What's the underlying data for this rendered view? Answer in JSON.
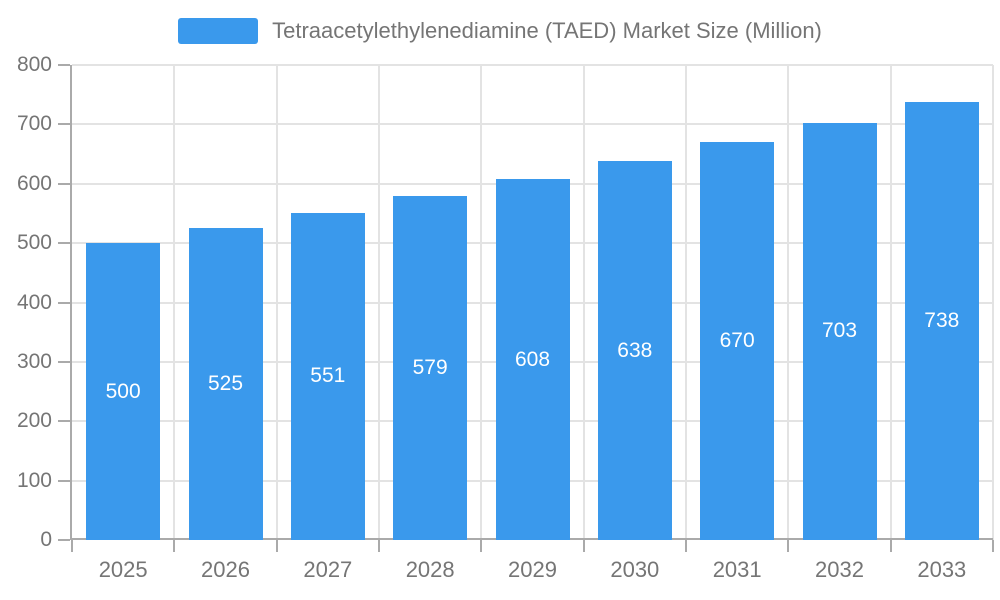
{
  "chart_data": {
    "type": "bar",
    "title": "Tetraacetylethylenediamine (TAED) Market Size (Million)",
    "categories": [
      "2025",
      "2026",
      "2027",
      "2028",
      "2029",
      "2030",
      "2031",
      "2032",
      "2033"
    ],
    "values": [
      500,
      525,
      551,
      579,
      608,
      638,
      670,
      703,
      738
    ],
    "xlabel": "",
    "ylabel": "",
    "ylim": [
      0,
      800
    ],
    "ytick_step": 100,
    "grid": true,
    "legend_position": "top",
    "bar_label_position": "inside-middle",
    "colors": {
      "bar": "#3A99EC",
      "bar_label": "#FFFFFF",
      "axis_text": "#757575",
      "grid_line": "#E3E3E3",
      "axis_line": "#AAAAAA",
      "background": "#FFFFFF"
    }
  }
}
